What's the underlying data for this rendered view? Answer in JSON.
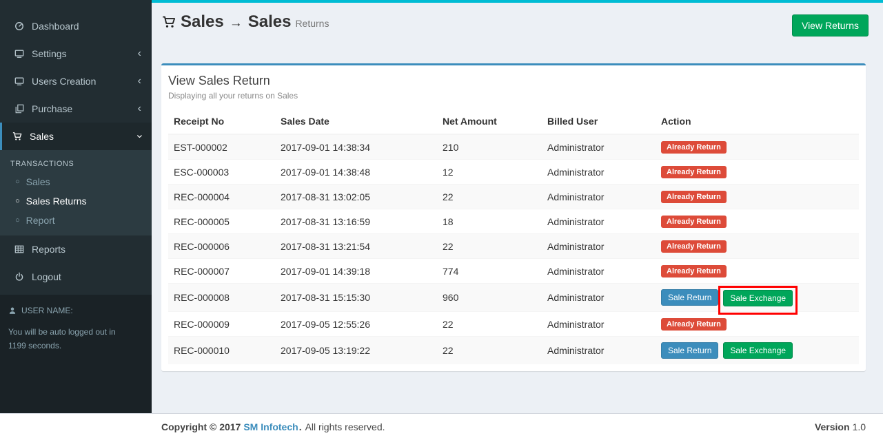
{
  "colors": {
    "primary": "#3c8dbc",
    "success": "#00a65a",
    "danger": "#dd4b39",
    "highlight": "#ff0000",
    "topbar": "#00bcd4",
    "sidebar_bg": "#222d32",
    "sidebar_active_bg": "#1e282c",
    "submenu_bg": "#2c3b41",
    "content_bg": "#ecf0f5"
  },
  "icons": {
    "chevron_left": "‹",
    "chevron_down": "‹",
    "circle": "○",
    "arrow_right": "→"
  },
  "sidebar": {
    "items": [
      {
        "label": "Dashboard"
      },
      {
        "label": "Settings"
      },
      {
        "label": "Users Creation"
      },
      {
        "label": "Purchase"
      },
      {
        "label": "Sales"
      },
      {
        "label": "Reports"
      },
      {
        "label": "Logout"
      }
    ],
    "transactions_header": "TRANSACTIONS",
    "submenu": [
      {
        "label": "Sales"
      },
      {
        "label": "Sales Returns"
      },
      {
        "label": "Report"
      }
    ],
    "user_panel": {
      "label": "USER NAME:",
      "notice": "You will be auto logged out in 1199 seconds."
    }
  },
  "header": {
    "section_title": "Sales",
    "page_title": "Sales",
    "page_subtitle": "Returns",
    "view_returns_button": "View Returns"
  },
  "card": {
    "title": "View Sales Return",
    "subtitle": "Displaying all your returns on Sales"
  },
  "table": {
    "columns": [
      "Receipt No",
      "Sales Date",
      "Net Amount",
      "Billed User",
      "Action"
    ],
    "action_labels": {
      "already_return": "Already Return",
      "sale_return": "Sale Return",
      "sale_exchange": "Sale Exchange"
    },
    "rows": [
      {
        "receipt_no": "EST-000002",
        "sales_date": "2017-09-01 14:38:34",
        "net_amount": "210",
        "billed_user": "Administrator",
        "actions": [
          "already_return"
        ]
      },
      {
        "receipt_no": "ESC-000003",
        "sales_date": "2017-09-01 14:38:48",
        "net_amount": "12",
        "billed_user": "Administrator",
        "actions": [
          "already_return"
        ]
      },
      {
        "receipt_no": "REC-000004",
        "sales_date": "2017-08-31 13:02:05",
        "net_amount": "22",
        "billed_user": "Administrator",
        "actions": [
          "already_return"
        ]
      },
      {
        "receipt_no": "REC-000005",
        "sales_date": "2017-08-31 13:16:59",
        "net_amount": "18",
        "billed_user": "Administrator",
        "actions": [
          "already_return"
        ]
      },
      {
        "receipt_no": "REC-000006",
        "sales_date": "2017-08-31 13:21:54",
        "net_amount": "22",
        "billed_user": "Administrator",
        "actions": [
          "already_return"
        ]
      },
      {
        "receipt_no": "REC-000007",
        "sales_date": "2017-09-01 14:39:18",
        "net_amount": "774",
        "billed_user": "Administrator",
        "actions": [
          "already_return"
        ]
      },
      {
        "receipt_no": "REC-000008",
        "sales_date": "2017-08-31 15:15:30",
        "net_amount": "960",
        "billed_user": "Administrator",
        "actions": [
          "sale_return",
          "sale_exchange"
        ],
        "highlight": "sale_exchange"
      },
      {
        "receipt_no": "REC-000009",
        "sales_date": "2017-09-05 12:55:26",
        "net_amount": "22",
        "billed_user": "Administrator",
        "actions": [
          "already_return"
        ]
      },
      {
        "receipt_no": "REC-000010",
        "sales_date": "2017-09-05 13:19:22",
        "net_amount": "22",
        "billed_user": "Administrator",
        "actions": [
          "sale_return",
          "sale_exchange"
        ]
      }
    ]
  },
  "footer": {
    "copyright_prefix": "Copyright © 2017",
    "company": "SM Infotech",
    "company_suffix": ".",
    "rights_text": "All rights reserved.",
    "version_label": "Version",
    "version_value": "1.0"
  }
}
